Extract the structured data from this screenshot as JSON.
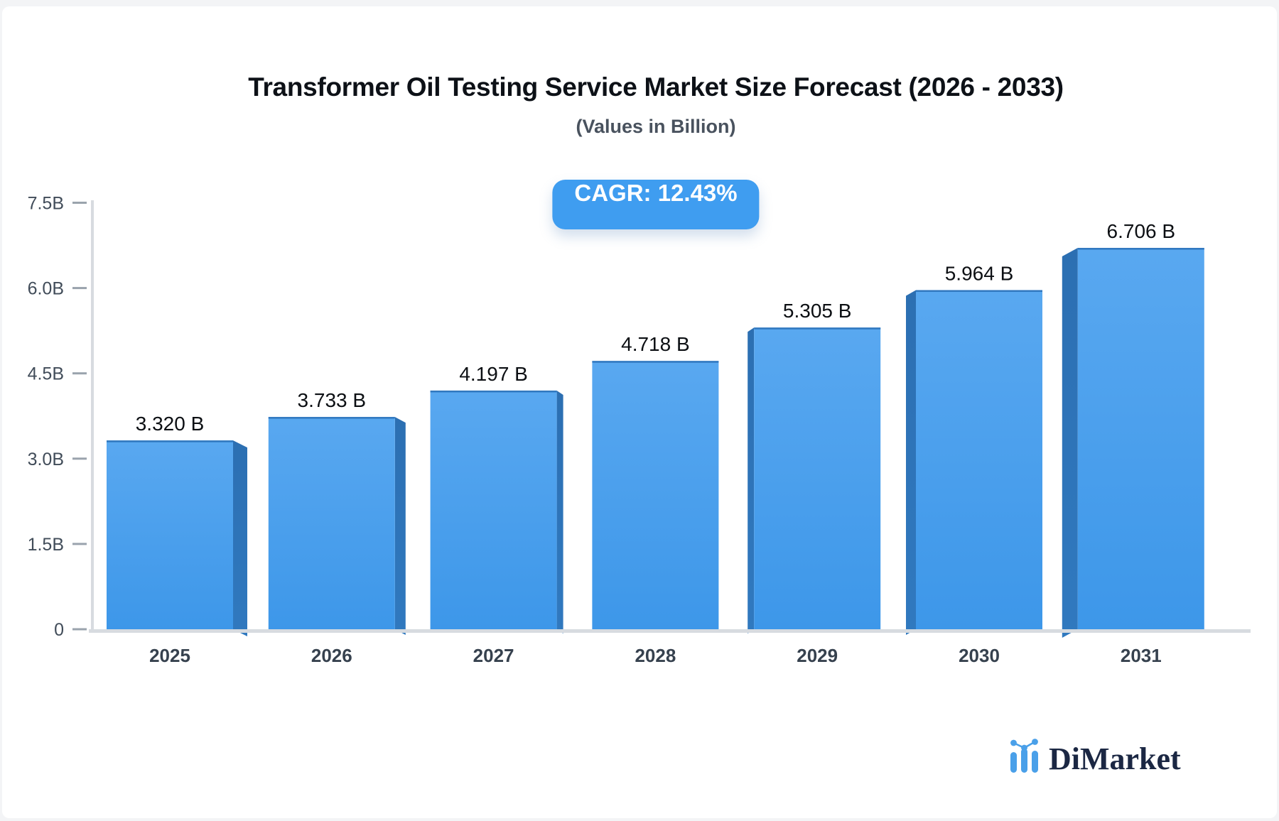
{
  "chart_data": {
    "type": "bar",
    "title": "Transformer Oil Testing Service Market Size Forecast (2026 - 2033)",
    "subtitle": "(Values in Billion)",
    "cagr_badge": "CAGR: 12.43%",
    "categories": [
      "2025",
      "2026",
      "2027",
      "2028",
      "2029",
      "2030",
      "2031"
    ],
    "values": [
      3.32,
      3.733,
      4.197,
      4.718,
      5.305,
      5.964,
      6.706
    ],
    "value_labels": [
      "3.320 B",
      "3.733 B",
      "4.197 B",
      "4.718 B",
      "5.305 B",
      "5.964 B",
      "6.706 B"
    ],
    "xlabel": "",
    "ylabel": "",
    "ylim": [
      0,
      7.5
    ],
    "yticks": [
      0,
      1.5,
      3.0,
      4.5,
      6.0,
      7.5
    ],
    "ytick_labels": [
      "0",
      "1.5B",
      "3.0B",
      "4.5B",
      "6.0B",
      "7.5B"
    ],
    "grid": false,
    "legend": "none",
    "bar_style": "3d-perspective",
    "colors": {
      "bar_face_top": "#59a8f0",
      "bar_face_bottom": "#3d97e9",
      "bar_side": "#2e74b9",
      "bar_top_edge": "#3178bf",
      "axis": "#d7dbe0",
      "tick": "#9aa3ad",
      "badge_bg": "#3f9df0",
      "badge_text": "#ffffff"
    }
  },
  "footer": {
    "brand": "DiMarket",
    "logo_icon": "bar-chart-logo"
  }
}
